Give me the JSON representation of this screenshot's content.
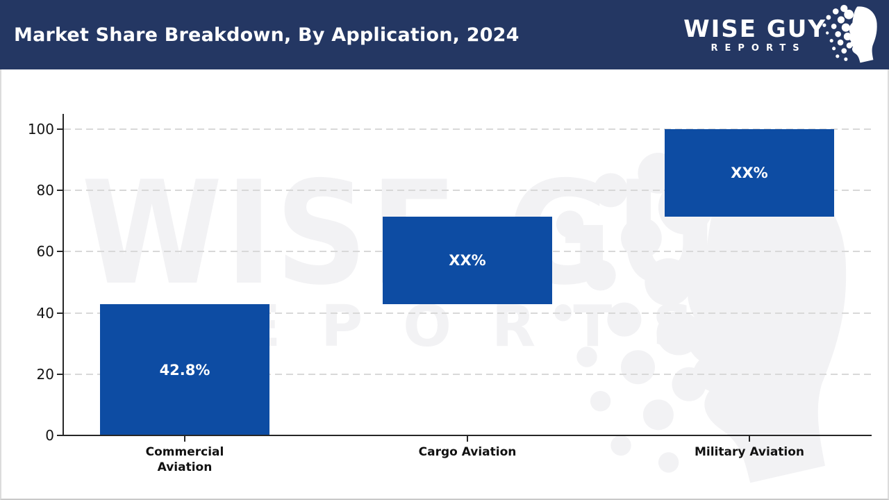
{
  "header": {
    "title": "Market Share Breakdown, By Application, 2024"
  },
  "logo": {
    "line1": "WISE GUY",
    "line2": "REPORTS"
  },
  "watermark": {
    "line1": "WISE GUY",
    "line2": "REPORTS"
  },
  "chart_data": {
    "type": "bar",
    "variant": "floating-waterfall",
    "title": "Market Share Breakdown, By Application, 2024",
    "categories": [
      "Commercial Aviation",
      "Cargo Aviation",
      "Military Aviation"
    ],
    "category_lines": [
      [
        "Commercial",
        "Aviation"
      ],
      [
        "Cargo Aviation"
      ],
      [
        "Military Aviation"
      ]
    ],
    "segments": [
      {
        "category": "Commercial Aviation",
        "start": 0,
        "end": 42.8,
        "label": "42.8%"
      },
      {
        "category": "Cargo Aviation",
        "start": 42.8,
        "end": 71.4,
        "label": "XX%"
      },
      {
        "category": "Military Aviation",
        "start": 71.4,
        "end": 100,
        "label": "XX%"
      }
    ],
    "yticks": [
      0,
      20,
      40,
      60,
      80,
      100
    ],
    "ylim": [
      0,
      105
    ],
    "xlabel": "",
    "ylabel": "",
    "bar_color": "#0d4ca3",
    "bar_label_color": "#ffffff",
    "grid": {
      "axis": "y",
      "style": "dashed",
      "color": "#d8d8d8"
    },
    "legend": null,
    "colors": {
      "header_bg": "#243763",
      "spine": "#262626",
      "tick_text": "#141414",
      "watermark": "#f2f2f4"
    }
  }
}
